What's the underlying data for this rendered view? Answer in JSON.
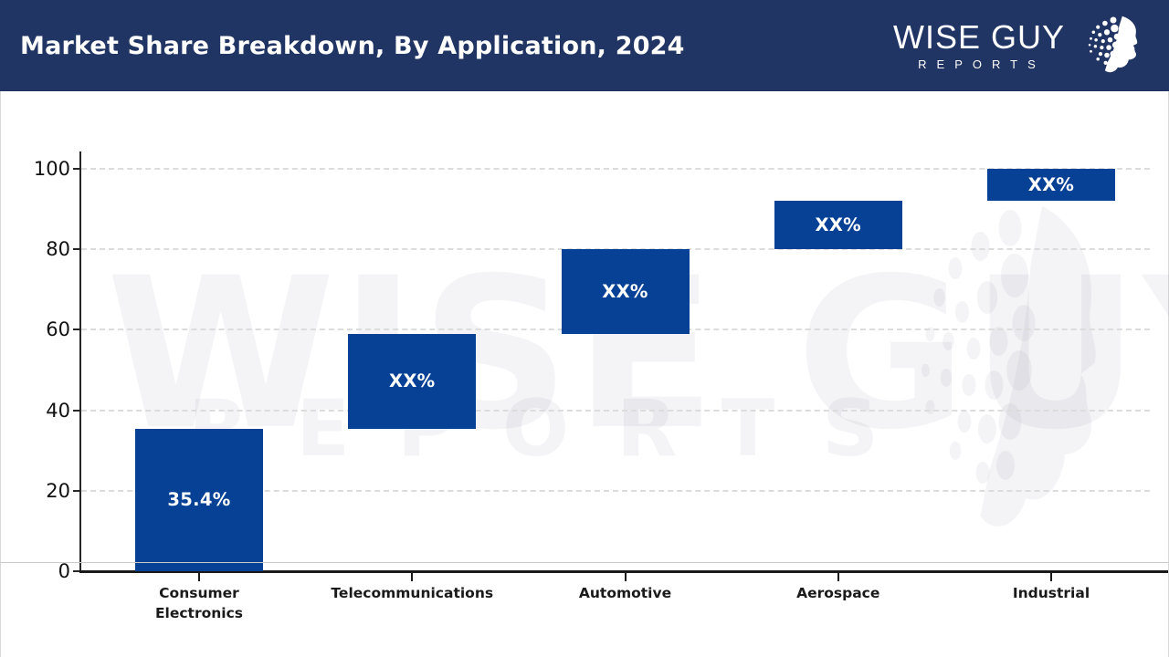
{
  "header": {
    "title": "Market Share Breakdown, By Application, 2024",
    "logo": {
      "wordmark": "WISE GUY",
      "tagline": "REPORTS"
    }
  },
  "watermark": {
    "wordmark": "WISE GUY",
    "tagline": "REPORTS"
  },
  "chart_data": {
    "type": "bar",
    "variant": "waterfall",
    "title": "Market Share Breakdown, By Application, 2024",
    "categories": [
      "Consumer Electronics",
      "Telecommunications",
      "Automotive",
      "Aerospace",
      "Industrial"
    ],
    "category_label_lines": [
      [
        "Consumer",
        "Electronics"
      ],
      [
        "Telecommunications"
      ],
      [
        "Automotive"
      ],
      [
        "Aerospace"
      ],
      [
        "Industrial"
      ]
    ],
    "bars": [
      {
        "category": "Consumer Electronics",
        "start": 0,
        "end": 35.4,
        "value_label": "35.4%"
      },
      {
        "category": "Telecommunications",
        "start": 35.4,
        "end": 59,
        "value_label": "XX%"
      },
      {
        "category": "Automotive",
        "start": 59,
        "end": 80,
        "value_label": "XX%"
      },
      {
        "category": "Aerospace",
        "start": 80,
        "end": 92,
        "value_label": "XX%"
      },
      {
        "category": "Industrial",
        "start": 92,
        "end": 100,
        "value_label": "XX%"
      }
    ],
    "yticks": [
      0,
      20,
      40,
      60,
      80,
      100
    ],
    "ylim": [
      0,
      103.5
    ],
    "xlabel": "",
    "ylabel": "",
    "legend": null,
    "grid": "horizontal-dashed",
    "bar_color": "#074195",
    "value_label_color": "#ffffff"
  },
  "colors": {
    "header_bg": "#213564",
    "bar": "#074195",
    "axis": "#262626",
    "grid": "#dcdcdc",
    "tick_text": "#111111"
  }
}
